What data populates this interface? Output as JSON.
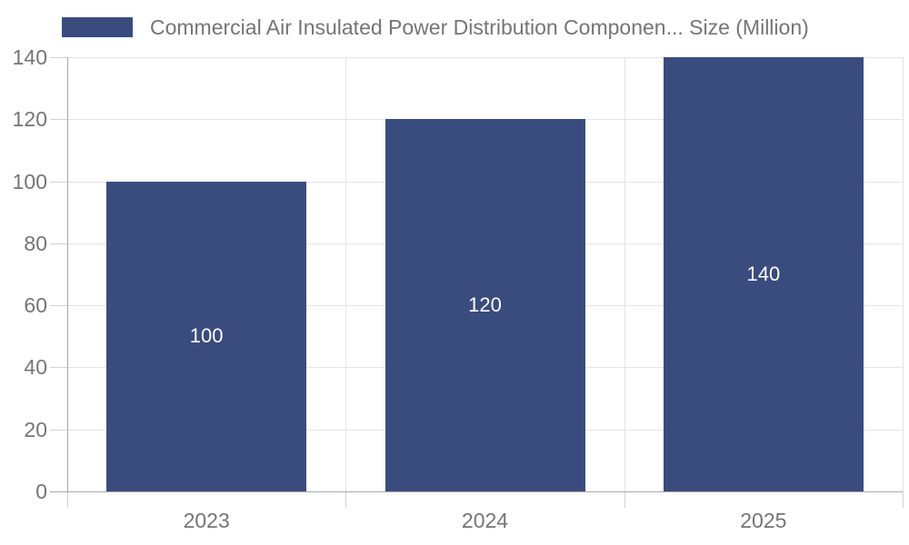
{
  "legend": {
    "label": "Commercial Air Insulated Power Distribution Componen... Size (Million)"
  },
  "chart_data": {
    "type": "bar",
    "title": "",
    "series_name": "Commercial Air Insulated Power Distribution Componen... Size (Million)",
    "categories": [
      "2023",
      "2024",
      "2025"
    ],
    "values": [
      100,
      120,
      140
    ],
    "bar_value_labels": [
      "100",
      "120",
      "140"
    ],
    "xlabel": "",
    "ylabel": "",
    "ylim": [
      0,
      140
    ],
    "yticks": [
      0,
      20,
      40,
      60,
      80,
      100,
      120,
      140
    ],
    "grid": true,
    "legend_position": "top-left",
    "value_labels_inside": true
  },
  "colors": {
    "background": "#ffffff",
    "bar": "#3A4B7E",
    "legend_swatch": "#3A4B7E",
    "axis_line": "#A8A8A8",
    "tick_mark": "#D2D2D2",
    "gridline": "#E4E4E4",
    "label_text": "#757575",
    "value_label_text": "#FFFFFF"
  }
}
